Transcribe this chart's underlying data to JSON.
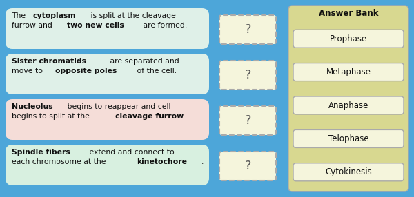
{
  "background_color": "#4da6d9",
  "title": "Answer Bank",
  "descriptions": [
    "The cytoplasm is split at the cleavage\nfurrow and two new cells are formed.",
    "Sister chromatids are separated and\nmove to opposite poles of the cell.",
    "Nucleolus begins to reappear and cell\nbegins to split at the cleavage furrow.",
    "Spindle fibers extend and connect to\neach chromosome at the kinetochore."
  ],
  "bold_words": [
    [
      "cytoplasm",
      "two new cells"
    ],
    [
      "Sister chromatids",
      "opposite poles"
    ],
    [
      "Nucleolus",
      "cleavage furrow"
    ],
    [
      "Spindle fibers",
      "kinetochore"
    ]
  ],
  "desc_bg_colors": [
    "#dff0e8",
    "#dff0e8",
    "#f5ddd8",
    "#d8f0e0"
  ],
  "answer_bank": [
    "Prophase",
    "Metaphase",
    "Anaphase",
    "Telophase",
    "Cytokinesis"
  ],
  "answer_bg_color": "#f5f5dc",
  "answer_bank_bg": "#d8d890",
  "question_box_color": "#f5f5dc",
  "question_mark": "?",
  "fig_width": 6.0,
  "fig_height": 2.86
}
